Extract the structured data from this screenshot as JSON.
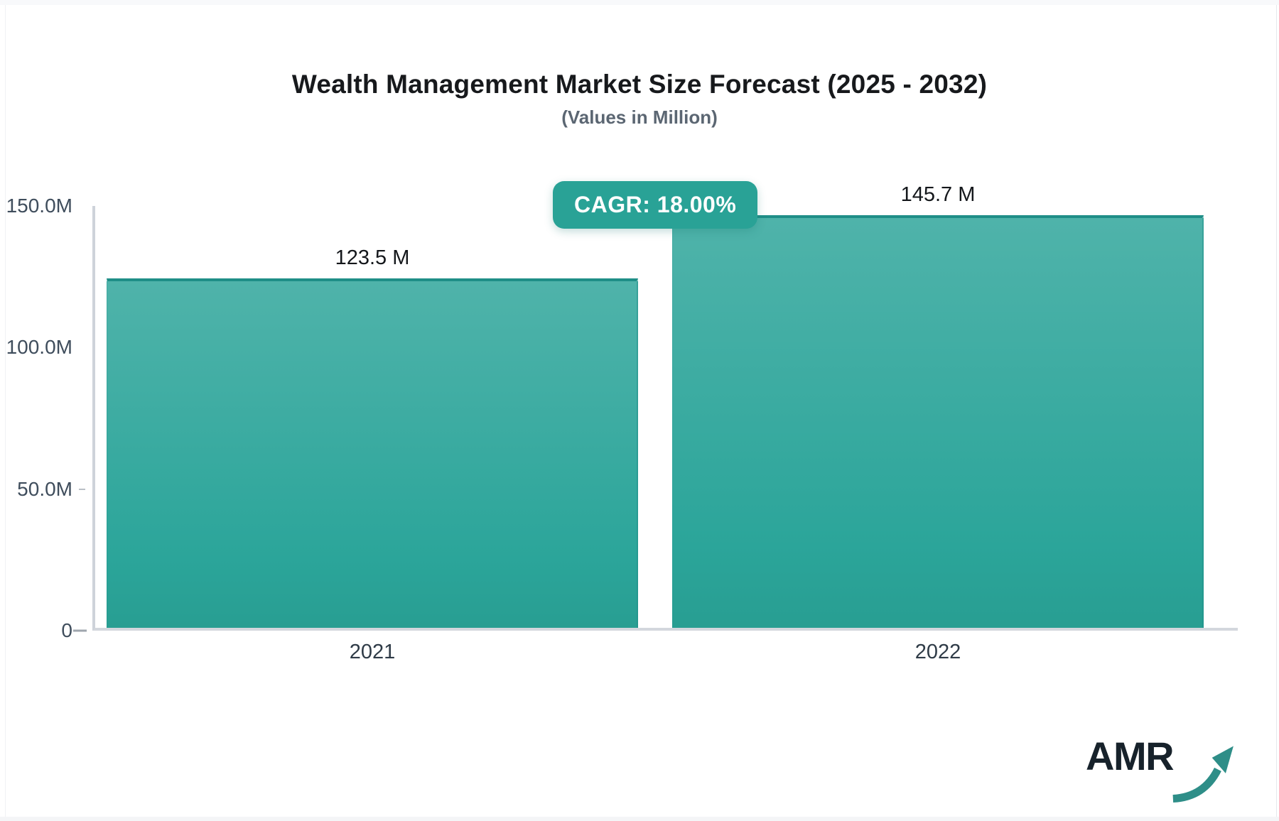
{
  "header": {
    "title": "Wealth Management Market Size Forecast (2025 - 2032)",
    "subtitle": "(Values in Million)",
    "cagr_label": "CAGR: 18.00%"
  },
  "logo": {
    "text": "AMR",
    "arrow_icon": "growth-arrow-icon"
  },
  "colors": {
    "bar_gradient_top": "#4fb3aa",
    "bar_gradient_bottom": "#2ba59a",
    "bar_top_border": "#1f8e87",
    "badge_background": "#29a296",
    "badge_text": "#ffffff",
    "axis_line": "#ced3da",
    "baseline": "#d3d7dd",
    "y_label_color": "#3f4d5c",
    "x_label_color": "#2f3b47",
    "value_label_color": "#14171b",
    "title_color": "#17191c",
    "subtitle_color": "#5b6672",
    "logo_text_color": "#17222b",
    "logo_arrow_color": "#2e8e88"
  },
  "chart_data": {
    "type": "bar",
    "title": "Wealth Management Market Size Forecast (2025 - 2032)",
    "subtitle": "(Values in Million)",
    "categories": [
      "2021",
      "2022"
    ],
    "values": [
      123.5,
      145.7
    ],
    "value_labels": [
      "123.5 M",
      "145.7 M"
    ],
    "unit": "Million",
    "xlabel": "",
    "ylabel": "",
    "ylim": [
      0,
      150
    ],
    "yticks": [
      {
        "value": 150,
        "label": "150.0M",
        "tick": "none"
      },
      {
        "value": 100,
        "label": "100.0M",
        "tick": "none"
      },
      {
        "value": 50,
        "label": "50.0M",
        "tick": "short"
      },
      {
        "value": 0,
        "label": "0",
        "tick": "long"
      }
    ],
    "grid": false,
    "legend": false,
    "cagr": "18.00%"
  }
}
